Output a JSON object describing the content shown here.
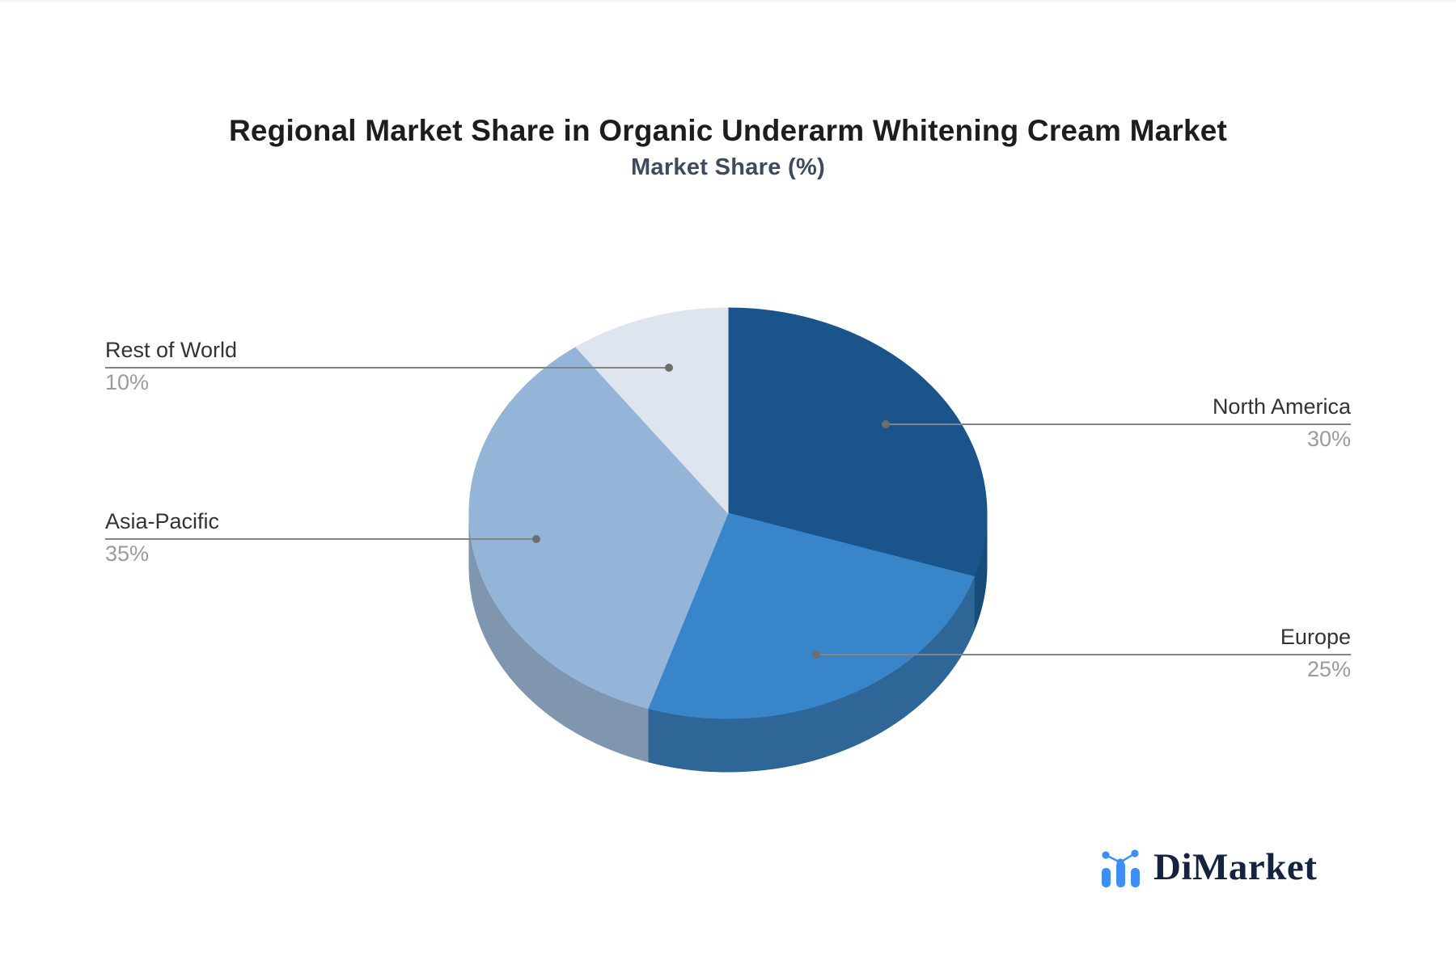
{
  "header": {
    "title": "Regional Market Share in Organic Underarm Whitening Cream Market",
    "subtitle": "Market Share (%)",
    "title_color": "#1d1d1d",
    "subtitle_color": "#3e4a5f"
  },
  "chart_data": {
    "type": "pie",
    "style": "3d",
    "title": "Regional Market Share in Organic Underarm Whitening Cream Market",
    "subtitle": "Market Share (%)",
    "unit": "%",
    "start_angle": "12-oclock",
    "direction": "clockwise",
    "slices": [
      {
        "label": "North America",
        "value": 30,
        "percent_label": "30%",
        "color": "#1a548b",
        "depth_color": "#174b79"
      },
      {
        "label": "Europe",
        "value": 25,
        "percent_label": "25%",
        "color": "#3885c9",
        "depth_color": "#2d6697"
      },
      {
        "label": "Asia-Pacific",
        "value": 35,
        "percent_label": "35%",
        "color": "#95b5d8",
        "depth_color": "#8095ae"
      },
      {
        "label": "Rest of World",
        "value": 10,
        "percent_label": "10%",
        "color": "#dfe5ef",
        "depth_color": "#bac7d9"
      }
    ],
    "callout_style": {
      "line_color": "#848484",
      "dot_color": "#6e6e6e",
      "label_color": "#333333",
      "percent_color": "#9b9b9b"
    }
  },
  "branding": {
    "name": "DiMarket",
    "icon": "bar-line-chart-icon",
    "icon_color": "#3d8ef7",
    "text_color": "#16233f"
  }
}
